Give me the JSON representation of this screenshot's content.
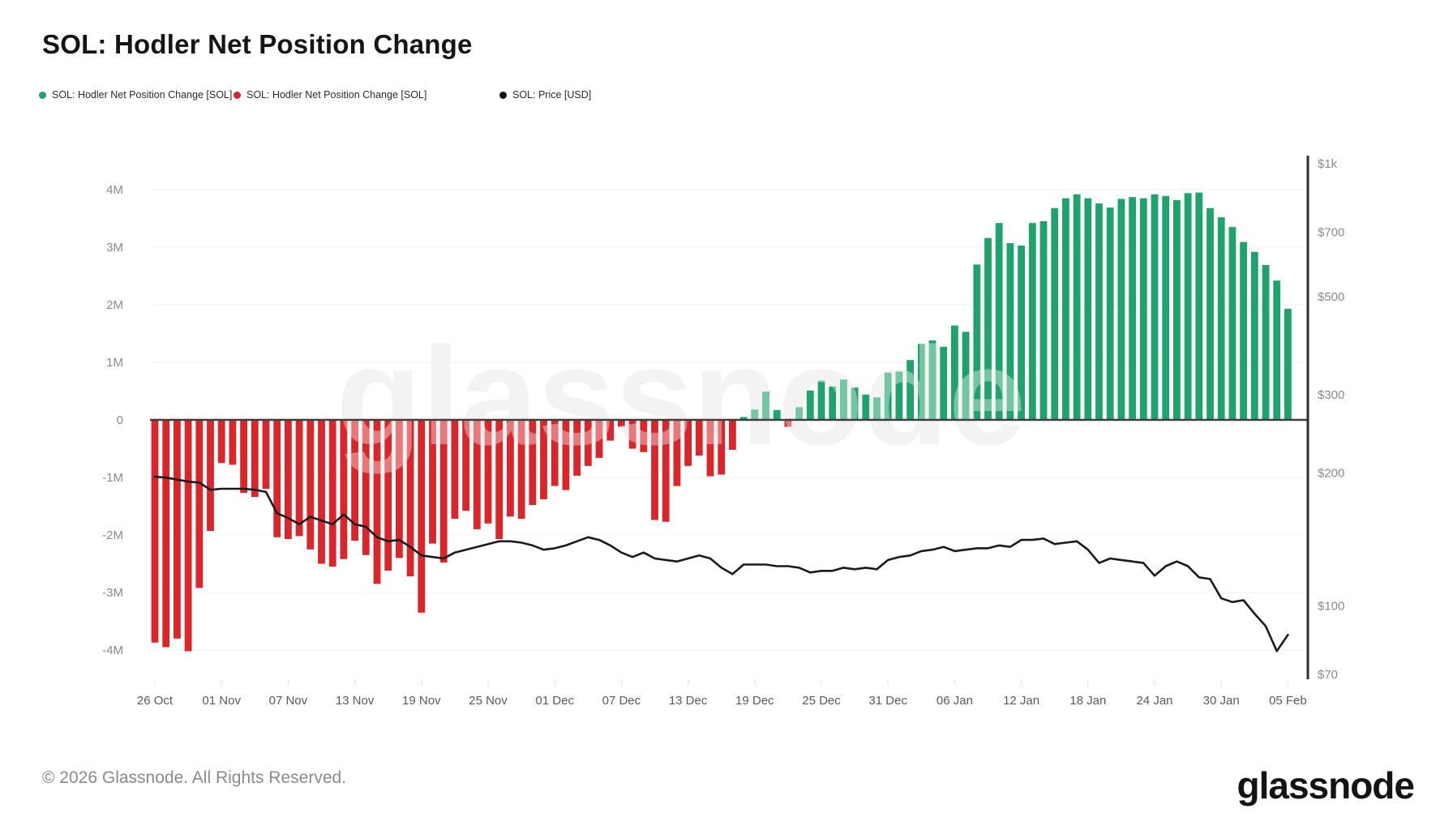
{
  "header": {
    "title": "SOL: Hodler Net Position Change"
  },
  "legend": [
    {
      "label": "SOL: Hodler Net Position Change [SOL]",
      "color": "#1fa26b"
    },
    {
      "label": "SOL: Hodler Net Position Change [SOL]",
      "color": "#d9262b"
    },
    {
      "label": "SOL: Price [USD]",
      "color": "#111111"
    }
  ],
  "watermark": "glassnode",
  "footer": {
    "copyright": "© 2026 Glassnode. All Rights Reserved.",
    "brand": "glassnode"
  },
  "chart_data": {
    "type": "bar+line combo",
    "title": "SOL: Hodler Net Position Change",
    "x_tick_labels": [
      "26 Oct",
      "01 Nov",
      "07 Nov",
      "13 Nov",
      "19 Nov",
      "25 Nov",
      "01 Dec",
      "07 Dec",
      "13 Dec",
      "19 Dec",
      "25 Dec",
      "31 Dec",
      "06 Jan",
      "12 Jan",
      "18 Jan",
      "24 Jan",
      "30 Jan",
      "05 Feb"
    ],
    "x_tick_every_days": 6,
    "x_range": "26 Oct – 05 Feb, one bar per day",
    "left_axis": {
      "tick_labels": [
        "4M",
        "3M",
        "2M",
        "1M",
        "0",
        "-1M",
        "-2M",
        "-3M",
        "-4M"
      ],
      "tick_values_millions": [
        4,
        3,
        2,
        1,
        0,
        -1,
        -2,
        -3,
        -4
      ],
      "unit": "SOL"
    },
    "right_axis": {
      "tick_labels": [
        "$1k",
        "$700",
        "$500",
        "$300",
        "$200",
        "$100",
        "$70"
      ],
      "tick_values": [
        1000,
        700,
        500,
        300,
        200,
        100,
        70
      ],
      "scale": "log",
      "unit": "USD"
    },
    "series": [
      {
        "name": "SOL: Hodler Net Position Change [SOL]",
        "type": "bar",
        "unit": "millions of SOL",
        "positive_color": "#1fa26b",
        "negative_color": "#d9262b",
        "values": [
          -3.87,
          -3.95,
          -3.8,
          -4.02,
          -2.92,
          -1.93,
          -0.75,
          -0.78,
          -1.27,
          -1.34,
          -1.2,
          -2.04,
          -2.07,
          -2.02,
          -2.25,
          -2.5,
          -2.55,
          -2.42,
          -2.1,
          -2.35,
          -2.85,
          -2.62,
          -2.4,
          -2.72,
          -3.35,
          -2.15,
          -2.48,
          -1.72,
          -1.58,
          -1.9,
          -1.8,
          -2.07,
          -1.68,
          -1.72,
          -1.48,
          -1.38,
          -1.15,
          -1.22,
          -0.97,
          -0.8,
          -0.66,
          -0.36,
          -0.12,
          -0.5,
          -0.56,
          -1.74,
          -1.77,
          -1.15,
          -0.8,
          -0.62,
          -0.98,
          -0.95,
          -0.52,
          0.05,
          0.18,
          0.49,
          0.17,
          -0.12,
          0.22,
          0.51,
          0.68,
          0.58,
          0.7,
          0.56,
          0.44,
          0.39,
          0.82,
          0.84,
          1.04,
          1.32,
          1.38,
          1.27,
          1.64,
          1.53,
          2.7,
          3.16,
          3.42,
          3.07,
          3.03,
          3.42,
          3.45,
          3.68,
          3.85,
          3.92,
          3.85,
          3.76,
          3.69,
          3.84,
          3.87,
          3.85,
          3.92,
          3.89,
          3.82,
          3.94,
          3.95,
          3.68,
          3.52,
          3.35,
          3.09,
          2.92,
          2.69,
          2.42,
          1.93
        ]
      },
      {
        "name": "SOL: Price [USD]",
        "type": "line",
        "unit": "USD",
        "color": "#1b1b1b",
        "values": [
          196,
          195,
          193,
          191,
          190,
          183,
          184,
          184,
          184,
          183,
          181,
          162,
          158,
          153,
          159,
          156,
          153,
          161,
          153,
          151,
          143,
          140,
          141,
          136,
          130,
          129,
          128,
          132,
          134,
          136,
          138,
          140,
          140,
          139,
          137,
          134,
          135,
          137,
          140,
          143,
          141,
          137,
          132,
          129,
          132,
          128,
          127,
          126,
          128,
          130,
          128,
          122,
          118,
          124,
          124,
          124,
          123,
          123,
          122,
          119,
          120,
          120,
          122,
          121,
          122,
          121,
          127,
          129,
          130,
          133,
          134,
          136,
          133,
          134,
          135,
          135,
          137,
          136,
          141,
          141,
          142,
          138,
          139,
          140,
          134,
          125,
          128,
          127,
          126,
          125,
          117,
          123,
          126,
          123,
          116,
          115,
          104,
          102,
          103,
          96,
          90,
          79,
          86
        ]
      }
    ]
  }
}
